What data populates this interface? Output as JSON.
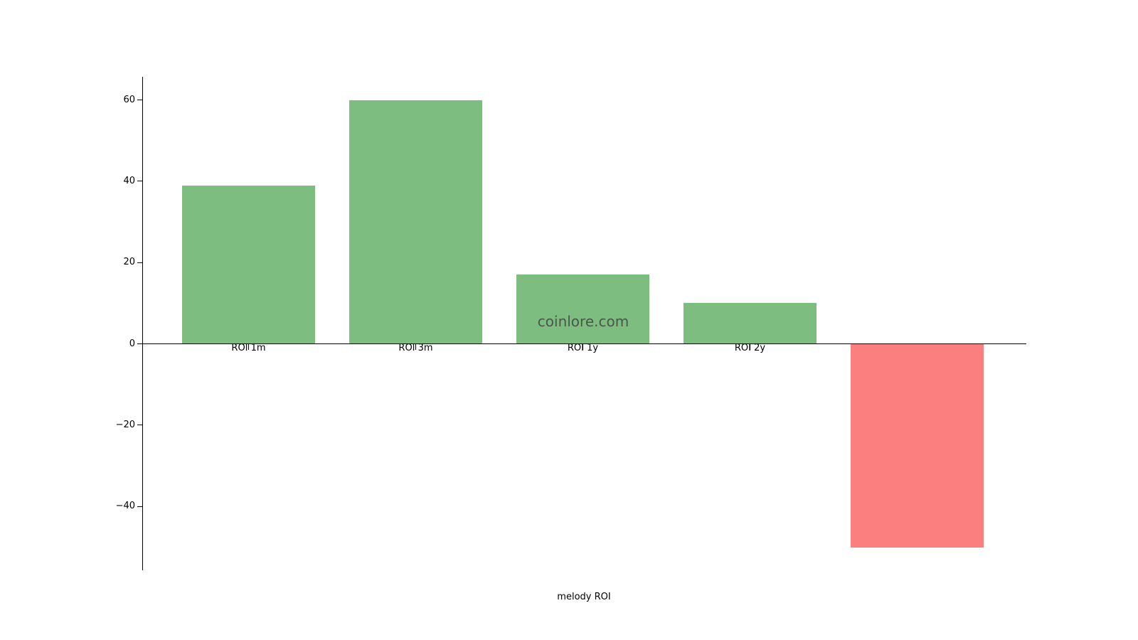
{
  "watermark": "coinlore.com",
  "chart_data": {
    "type": "bar",
    "title": "melody ROI",
    "categories": [
      "ROI 1m",
      "ROI 3m",
      "ROI 1y",
      "ROI 2y",
      ""
    ],
    "values": [
      39,
      60,
      17,
      10,
      -50
    ],
    "series": [
      {
        "name": "melody ROI",
        "values": [
          39,
          60,
          17,
          10,
          -50
        ]
      }
    ],
    "y_ticks": [
      60,
      40,
      20,
      0,
      -20,
      -40
    ],
    "ylim": [
      -56,
      66
    ],
    "xlabel": "",
    "ylabel": "",
    "grid": false,
    "legend_position": "none",
    "positive_color": "#7dbe80",
    "negative_color": "#fc7f7f",
    "axis_color": "#000000",
    "watermark_text": "coinlore.com"
  }
}
